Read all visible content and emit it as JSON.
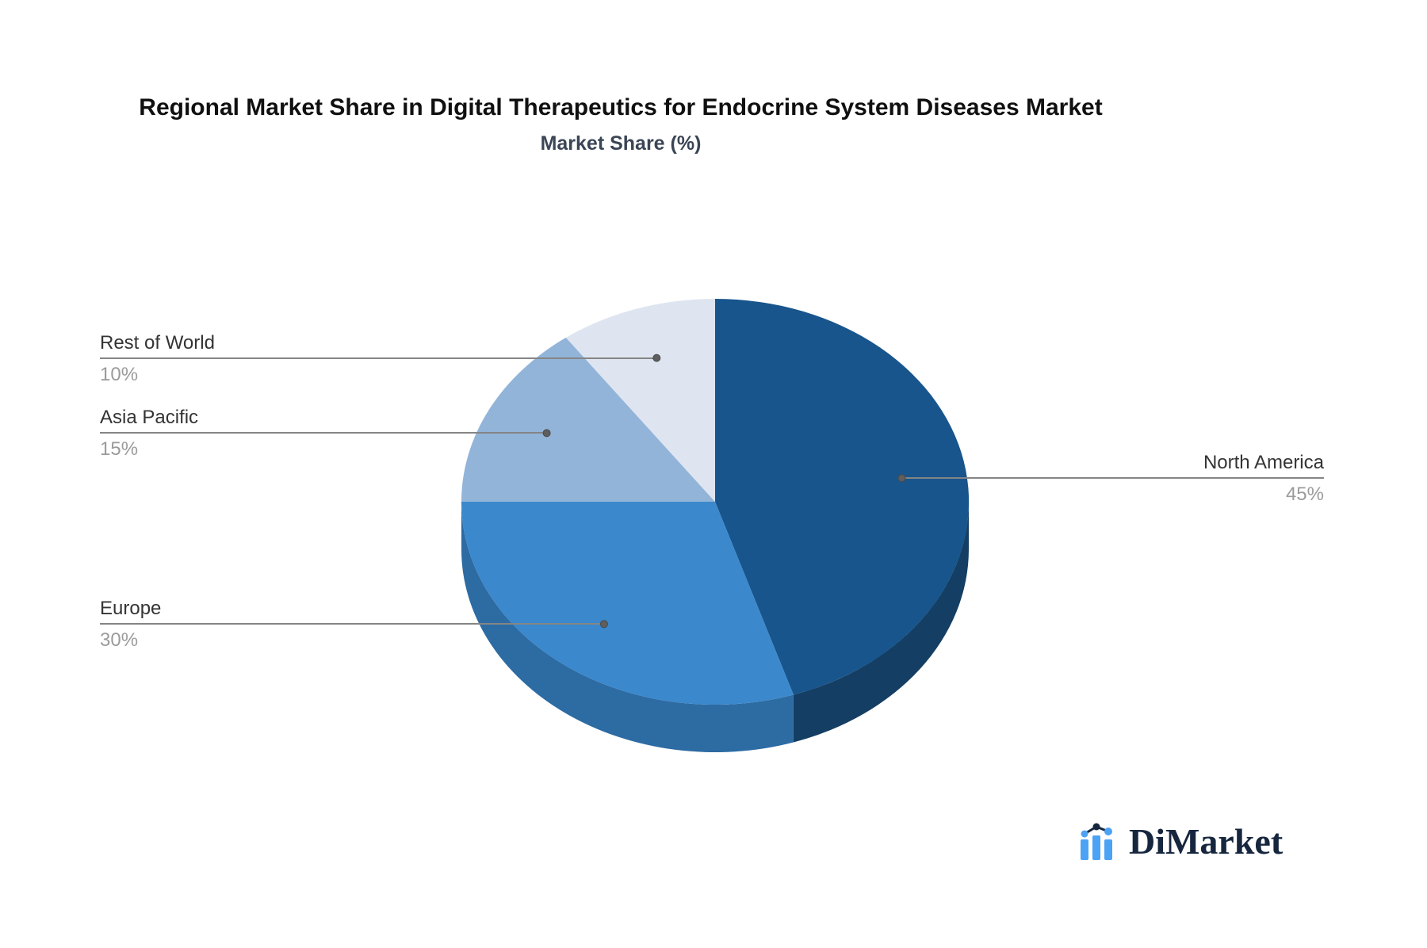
{
  "title": "Regional Market Share in Digital Therapeutics for Endocrine System Diseases Market",
  "subtitle": "Market Share (%)",
  "logo": {
    "text": "DiMarket"
  },
  "colors": {
    "title": "#101010",
    "subtitle": "#3A4556",
    "label_text": "#343434",
    "value_text": "#9B9B9B",
    "leader_line": "#858585",
    "leader_dot": "#5E5E5E",
    "logo_navy": "#16263E",
    "logo_blue": "#4CA2F4"
  },
  "chart_data": {
    "type": "pie",
    "title": "Regional Market Share in Digital Therapeutics for Endocrine System Diseases Market",
    "subtitle": "Market Share (%)",
    "unit": "%",
    "effect": "3d",
    "start_angle": "12-oclock",
    "direction": "clockwise",
    "legend_position": "callout-labels",
    "slices": [
      {
        "label": "North America",
        "value": 45,
        "display": "45%",
        "color": "#18558C",
        "side_color": "#143E63",
        "label_side": "right"
      },
      {
        "label": "Europe",
        "value": 30,
        "display": "30%",
        "color": "#3B88CC",
        "side_color": "#2D6BA3",
        "label_side": "left"
      },
      {
        "label": "Asia Pacific",
        "value": 15,
        "display": "15%",
        "color": "#92B4D9",
        "side_color": "#7396BD",
        "label_side": "left"
      },
      {
        "label": "Rest of World",
        "value": 10,
        "display": "10%",
        "color": "#DFE5F0",
        "side_color": "#BCC5D6",
        "label_side": "left"
      }
    ]
  }
}
